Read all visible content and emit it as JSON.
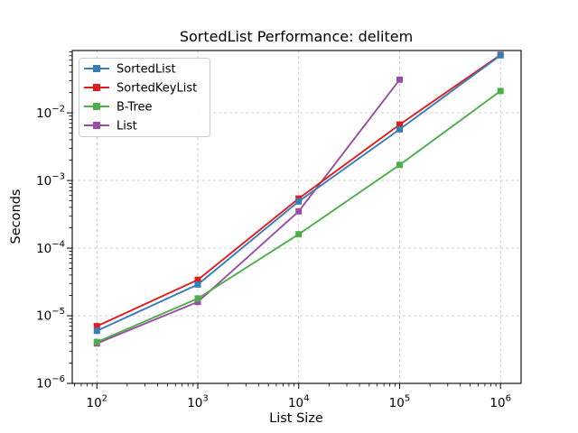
{
  "window": {
    "background": "#ffffff"
  },
  "chart_data": {
    "type": "line",
    "title": "SortedList Performance: delitem",
    "xlabel": "List Size",
    "ylabel": "Seconds",
    "x_scale": "log",
    "y_scale": "log",
    "xlim": [
      57,
      1600000
    ],
    "ylim": [
      1e-06,
      0.0835
    ],
    "grid": true,
    "grid_style": "dashed",
    "grid_color": "#c9c9c9",
    "legend_position": "upper left",
    "x_ticks": [
      {
        "label": "10^2",
        "value": 100
      },
      {
        "label": "10^3",
        "value": 1000
      },
      {
        "label": "10^4",
        "value": 10000
      },
      {
        "label": "10^5",
        "value": 100000
      },
      {
        "label": "10^6",
        "value": 1000000
      }
    ],
    "y_ticks": [
      {
        "label": "10^−2",
        "value": 0.01
      },
      {
        "label": "10^−3",
        "value": 0.001
      },
      {
        "label": "10^−4",
        "value": 0.0001
      },
      {
        "label": "10^−5",
        "value": 1e-05
      },
      {
        "label": "10^−6",
        "value": 1e-06
      }
    ],
    "series": [
      {
        "name": "SortedList",
        "color": "#377eb8",
        "marker": "square",
        "x": [
          100,
          1000,
          10000,
          100000,
          1000000
        ],
        "y": [
          6e-06,
          2.9e-05,
          0.00049,
          0.0057,
          0.071
        ]
      },
      {
        "name": "SortedKeyList",
        "color": "#e41a1c",
        "marker": "square",
        "x": [
          100,
          1000,
          10000,
          100000,
          1000000
        ],
        "y": [
          7e-06,
          3.4e-05,
          0.00054,
          0.0067,
          0.072
        ]
      },
      {
        "name": "B-Tree",
        "color": "#4daf4a",
        "marker": "square",
        "x": [
          100,
          1000,
          10000,
          100000,
          1000000
        ],
        "y": [
          4.1e-06,
          1.8e-05,
          0.00016,
          0.0017,
          0.021
        ]
      },
      {
        "name": "List",
        "color": "#984ea3",
        "marker": "square",
        "x": [
          100,
          1000,
          10000,
          100000
        ],
        "y": [
          3.9e-06,
          1.6e-05,
          0.00035,
          0.031
        ]
      }
    ]
  }
}
